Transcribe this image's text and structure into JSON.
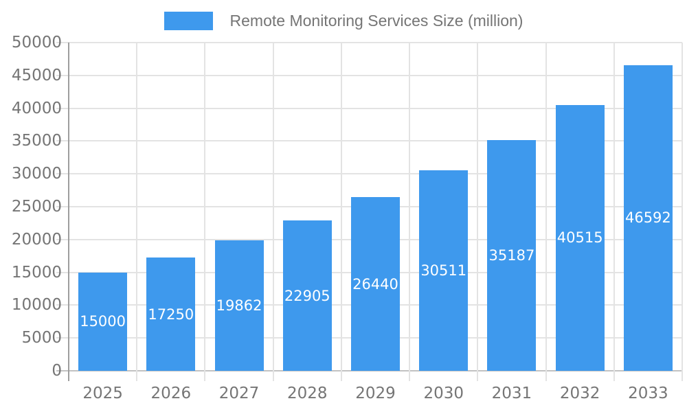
{
  "chart_data": {
    "type": "bar",
    "title": "Remote Monitoring Services Size (million)",
    "legend_entries": [
      "Remote Monitoring Services Size (million)"
    ],
    "legend_position": "top-center",
    "categories": [
      "2025",
      "2026",
      "2027",
      "2028",
      "2029",
      "2030",
      "2031",
      "2032",
      "2033"
    ],
    "values": [
      15000,
      17250,
      19862,
      22905,
      26440,
      30511,
      35187,
      40515,
      46592
    ],
    "xlabel": "",
    "ylabel": "",
    "ylim": [
      0,
      50000
    ],
    "ytick_step": 5000,
    "ytick_labels": [
      "0",
      "5000",
      "10000",
      "15000",
      "20000",
      "25000",
      "30000",
      "35000",
      "40000",
      "45000",
      "50000"
    ],
    "grid": true,
    "bar_labels_inside": true,
    "colors": {
      "bar": "#3E99ED",
      "grid": "#E3E3E3",
      "baseline": "#C2C2C2",
      "axis": "#9E9E9E",
      "tick_text": "#757575",
      "title_text": "#757575",
      "bar_label_text": "#FFFFFF"
    }
  }
}
